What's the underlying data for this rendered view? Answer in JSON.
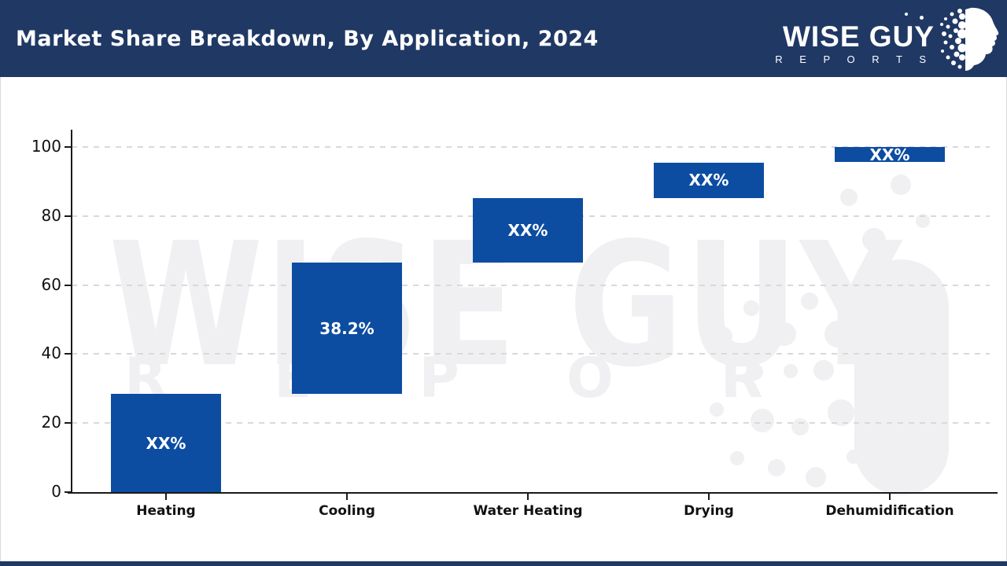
{
  "header": {
    "title": "Market Share Breakdown, By Application, 2024",
    "logo": {
      "line1": "WISE GUY",
      "line2": "R E P O R T S"
    }
  },
  "watermark": {
    "line1": "WISE GUY",
    "line2": "R E P O R T S"
  },
  "colors": {
    "header_bg": "#203864",
    "footer_bg": "#203864",
    "bar": "#0c4da2",
    "bar_label": "#ffffff",
    "grid": "#d9d9d9",
    "axis": "#1a1a1a",
    "watermark": "#f0f0f2"
  },
  "chart_data": {
    "type": "bar",
    "subtype": "waterfall",
    "title": "Market Share Breakdown, By Application, 2024",
    "categories": [
      "Heating",
      "Cooling",
      "Water Heating",
      "Drying",
      "Dehumidification"
    ],
    "series": [
      {
        "name": "Market share (%)",
        "values": [
          28.4,
          38.2,
          18.6,
          10.4,
          4.4
        ]
      }
    ],
    "bar_labels": [
      "XX%",
      "38.2%",
      "XX%",
      "XX%",
      "XX%"
    ],
    "cumulative_tops": [
      28.4,
      66.6,
      85.2,
      95.6,
      100
    ],
    "ylim": [
      0,
      100
    ],
    "yticks": [
      0,
      20,
      40,
      60,
      80,
      100
    ],
    "xlabel": "",
    "ylabel": "",
    "grid": "horizontal-dashed",
    "legend": "none"
  }
}
